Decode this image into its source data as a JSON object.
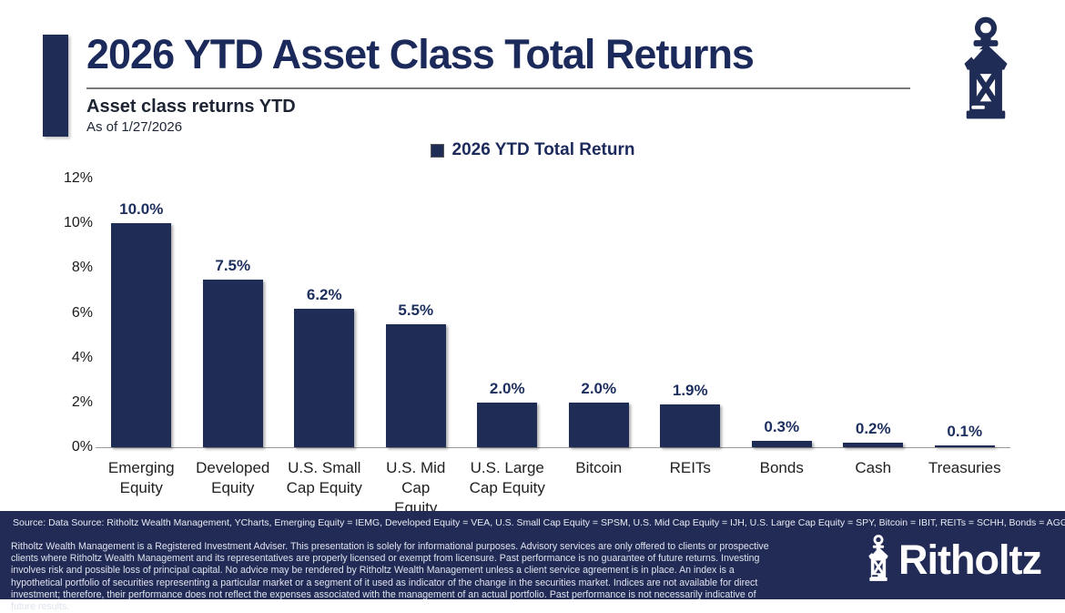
{
  "header": {
    "title": "2026 YTD Asset Class Total Returns",
    "subtitle": "Asset class returns YTD",
    "as_of": "As of 1/27/2026"
  },
  "legend": {
    "label": "2026 YTD Total Return"
  },
  "chart_data": {
    "type": "bar",
    "title": "2026 YTD Asset Class Total Returns",
    "subtitle": "Asset class returns YTD, As of 1/27/2026",
    "legend_entries": [
      "2026 YTD Total Return"
    ],
    "legend_position": "top-center",
    "grid": false,
    "xlabel": "",
    "ylabel": "",
    "ylim": [
      0,
      12
    ],
    "yticks": [
      "0%",
      "2%",
      "4%",
      "6%",
      "8%",
      "10%",
      "12%"
    ],
    "ytick_values": [
      0,
      2,
      4,
      6,
      8,
      10,
      12
    ],
    "categories": [
      "Emerging\nEquity",
      "Developed\nEquity",
      "U.S. Small\nCap Equity",
      "U.S. Mid Cap\nEquity",
      "U.S. Large\nCap Equity",
      "Bitcoin",
      "REITs",
      "Bonds",
      "Cash",
      "Treasuries"
    ],
    "values": [
      10.0,
      7.5,
      6.2,
      5.5,
      2.0,
      2.0,
      1.9,
      0.3,
      0.2,
      0.1
    ],
    "value_labels": [
      "10.0%",
      "7.5%",
      "6.2%",
      "5.5%",
      "2.0%",
      "2.0%",
      "1.9%",
      "0.3%",
      "0.2%",
      "0.1%"
    ],
    "bar_color": "#1f2c56"
  },
  "footer": {
    "source": "Source: Data Source: Ritholtz Wealth Management, YCharts, Emerging Equity = IEMG, Developed Equity = VEA, U.S. Small Cap Equity = SPSM, U.S. Mid Cap Equity = IJH, U.S. Large Cap Equity = SPY, Bitcoin = IBIT, REITs = SCHH, Bonds = AGG, Cash = BIL, Treasuries = GOVT",
    "disclaimer": "Ritholtz Wealth Management is a Registered Investment Adviser. This presentation is solely for informational purposes. Advisory services are only offered to clients or prospective clients where Ritholtz Wealth Management and its representatives are properly licensed or exempt from licensure. Past performance is no guarantee of future returns. Investing involves risk and possible loss of principal capital. No advice may be rendered by Ritholtz Wealth Management unless a client service agreement is in place. An index is a hypothetical portfolio of securities representing a particular market or a segment of it used as indicator of the change in the securities market. Indices are not available for direct investment; therefore, their performance does not reflect the expenses associated with the management of an actual portfolio. Past performance is not necessarily indicative of future results.",
    "brand": "Ritholtz"
  },
  "colors": {
    "navy": "#1f2c56",
    "title_navy": "#1b2a5b",
    "value_label_navy": "#1c2f5e",
    "footer_bg": "#212b55",
    "axis_line": "#9b9b9b",
    "underline_gray": "#7a7a7a"
  }
}
